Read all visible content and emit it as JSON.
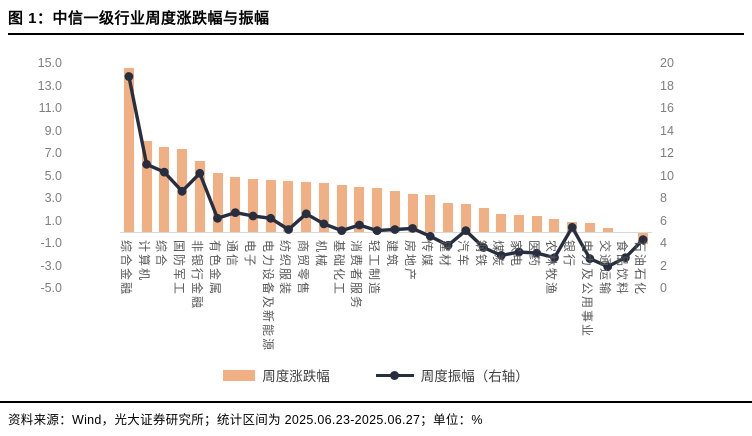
{
  "title": "图 1：中信一级行业周度涨跌幅与振幅",
  "footer": "资料来源：Wind，光大证券研究所；统计区间为 2025.06.23-2025.06.27；单位：%",
  "legend": {
    "bar_label": "周度涨跌幅",
    "line_label": "周度振幅（右轴）"
  },
  "colors": {
    "bar": "#F1B083",
    "line": "#272E40",
    "zero_line": "#D9D9D9",
    "axis_text": "#7F7F7F",
    "category_text": "#595959",
    "rule": "#000000"
  },
  "chart_data": {
    "type": "bar",
    "subtype": "bar+line-dual-axis",
    "title": "中信一级行业周度涨跌幅与振幅",
    "categories": [
      "综合金融",
      "计算机",
      "综合",
      "国防军工",
      "非银行金融",
      "有色金属",
      "通信",
      "电子",
      "电力设备及新能源",
      "纺织服装",
      "商贸零售",
      "机械",
      "基础化工",
      "消费者服务",
      "轻工制造",
      "建筑",
      "房地产",
      "传媒",
      "建材",
      "汽车",
      "钢铁",
      "煤炭",
      "家电",
      "医药",
      "农林牧渔",
      "银行",
      "电力及公用事业",
      "交通运输",
      "食品饮料",
      "石油石化"
    ],
    "series": [
      {
        "name": "周度涨跌幅",
        "type": "bar",
        "axis": "left",
        "values": [
          14.6,
          8.1,
          7.5,
          7.4,
          6.3,
          5.2,
          4.9,
          4.7,
          4.6,
          4.5,
          4.4,
          4.3,
          4.2,
          4.0,
          3.9,
          3.6,
          3.4,
          3.3,
          2.6,
          2.5,
          2.1,
          1.6,
          1.5,
          1.4,
          1.1,
          0.9,
          0.8,
          0.3,
          0.0,
          -1.0
        ]
      },
      {
        "name": "周度振幅（右轴）",
        "type": "line",
        "axis": "right",
        "values": [
          18.8,
          11.0,
          10.3,
          8.6,
          10.2,
          6.2,
          6.7,
          6.4,
          6.2,
          5.2,
          6.6,
          5.7,
          5.1,
          5.6,
          5.1,
          5.2,
          5.3,
          4.6,
          3.8,
          5.1,
          3.6,
          2.9,
          3.2,
          3.1,
          2.7,
          5.4,
          2.6,
          1.9,
          2.7,
          4.3
        ]
      }
    ],
    "left_axis": {
      "label_ticks": [
        "15.0",
        "13.0",
        "11.0",
        "9.0",
        "7.0",
        "5.0",
        "3.0",
        "1.0",
        "-1.0",
        "-3.0",
        "-5.0"
      ],
      "max": 15,
      "min": -5
    },
    "right_axis": {
      "label_ticks": [
        "20",
        "18",
        "16",
        "14",
        "12",
        "10",
        "8",
        "6",
        "4",
        "2",
        "0"
      ],
      "max": 20,
      "min": 0
    },
    "grid": "zero-line-only",
    "legend_position": "bottom",
    "unit": "%"
  }
}
